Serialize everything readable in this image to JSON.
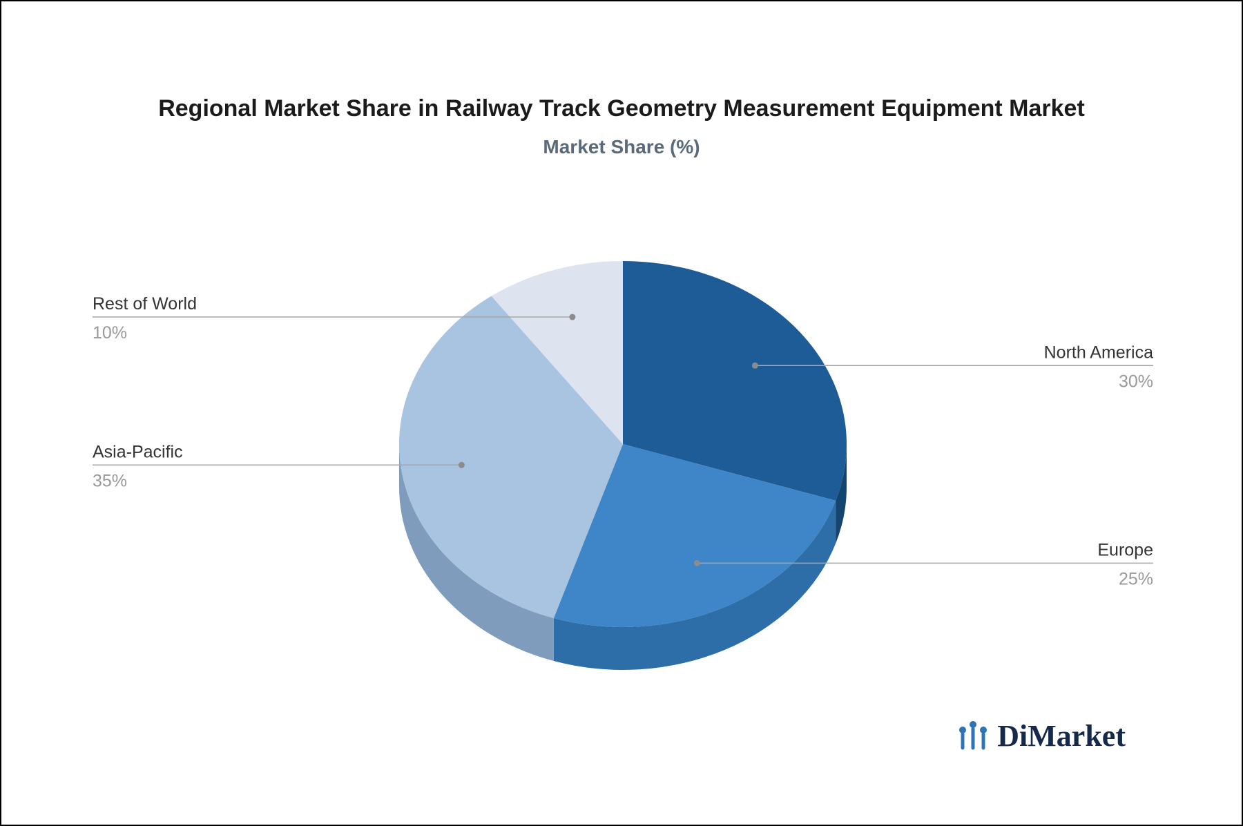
{
  "header": {
    "title": "Regional Market Share in Railway Track Geometry Measurement Equipment Market",
    "subtitle": "Market Share (%)"
  },
  "branding": {
    "name": "DiMarket",
    "icon_color": "#2e75b6",
    "text_color": "#15294a"
  },
  "chart_data": {
    "type": "pie",
    "title": "Regional Market Share in Railway Track Geometry Measurement Equipment Market",
    "subtitle": "Market Share (%)",
    "unit": "%",
    "effect": "3d",
    "direction": "clockwise",
    "start_angle_deg": -90,
    "legend": "none",
    "categories": [
      "North America",
      "Europe",
      "Asia-Pacific",
      "Rest of World"
    ],
    "values": [
      30,
      25,
      35,
      10
    ],
    "colors": [
      "#1d5c96",
      "#3e86c7",
      "#a9c4e1",
      "#dde4ef"
    ],
    "side_colors": [
      "#14456f",
      "#2e6ea8",
      "#7f9cbd",
      "#b9c4d4"
    ],
    "label_style": {
      "name_color": "#333333",
      "pct_color": "#999999",
      "line_color": "#a6a6a6",
      "dot_color": "#8c8c8c"
    }
  }
}
